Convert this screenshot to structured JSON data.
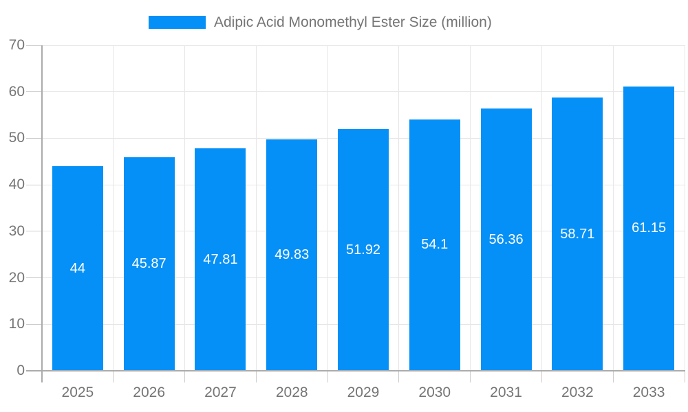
{
  "chart_data": {
    "type": "bar",
    "title": "Adipic Acid Monomethyl Ester Size (million)",
    "legend_position": "top",
    "categories": [
      "2025",
      "2026",
      "2027",
      "2028",
      "2029",
      "2030",
      "2031",
      "2032",
      "2033"
    ],
    "values": [
      44,
      45.87,
      47.81,
      49.83,
      51.92,
      54.1,
      56.36,
      58.71,
      61.15
    ],
    "xlabel": "",
    "ylabel": "",
    "ylim": [
      0,
      70
    ],
    "yticks": [
      0,
      10,
      20,
      30,
      40,
      50,
      60,
      70
    ],
    "grid": true,
    "value_labels": "centered-inside-bars",
    "colors": {
      "bar": "#0590f7",
      "grid": "#e6e6e6",
      "tick": "#cccccc",
      "axis": "#ababab",
      "label_text": "#757575",
      "value_text": "#ffffff",
      "background": "#ffffff"
    }
  }
}
